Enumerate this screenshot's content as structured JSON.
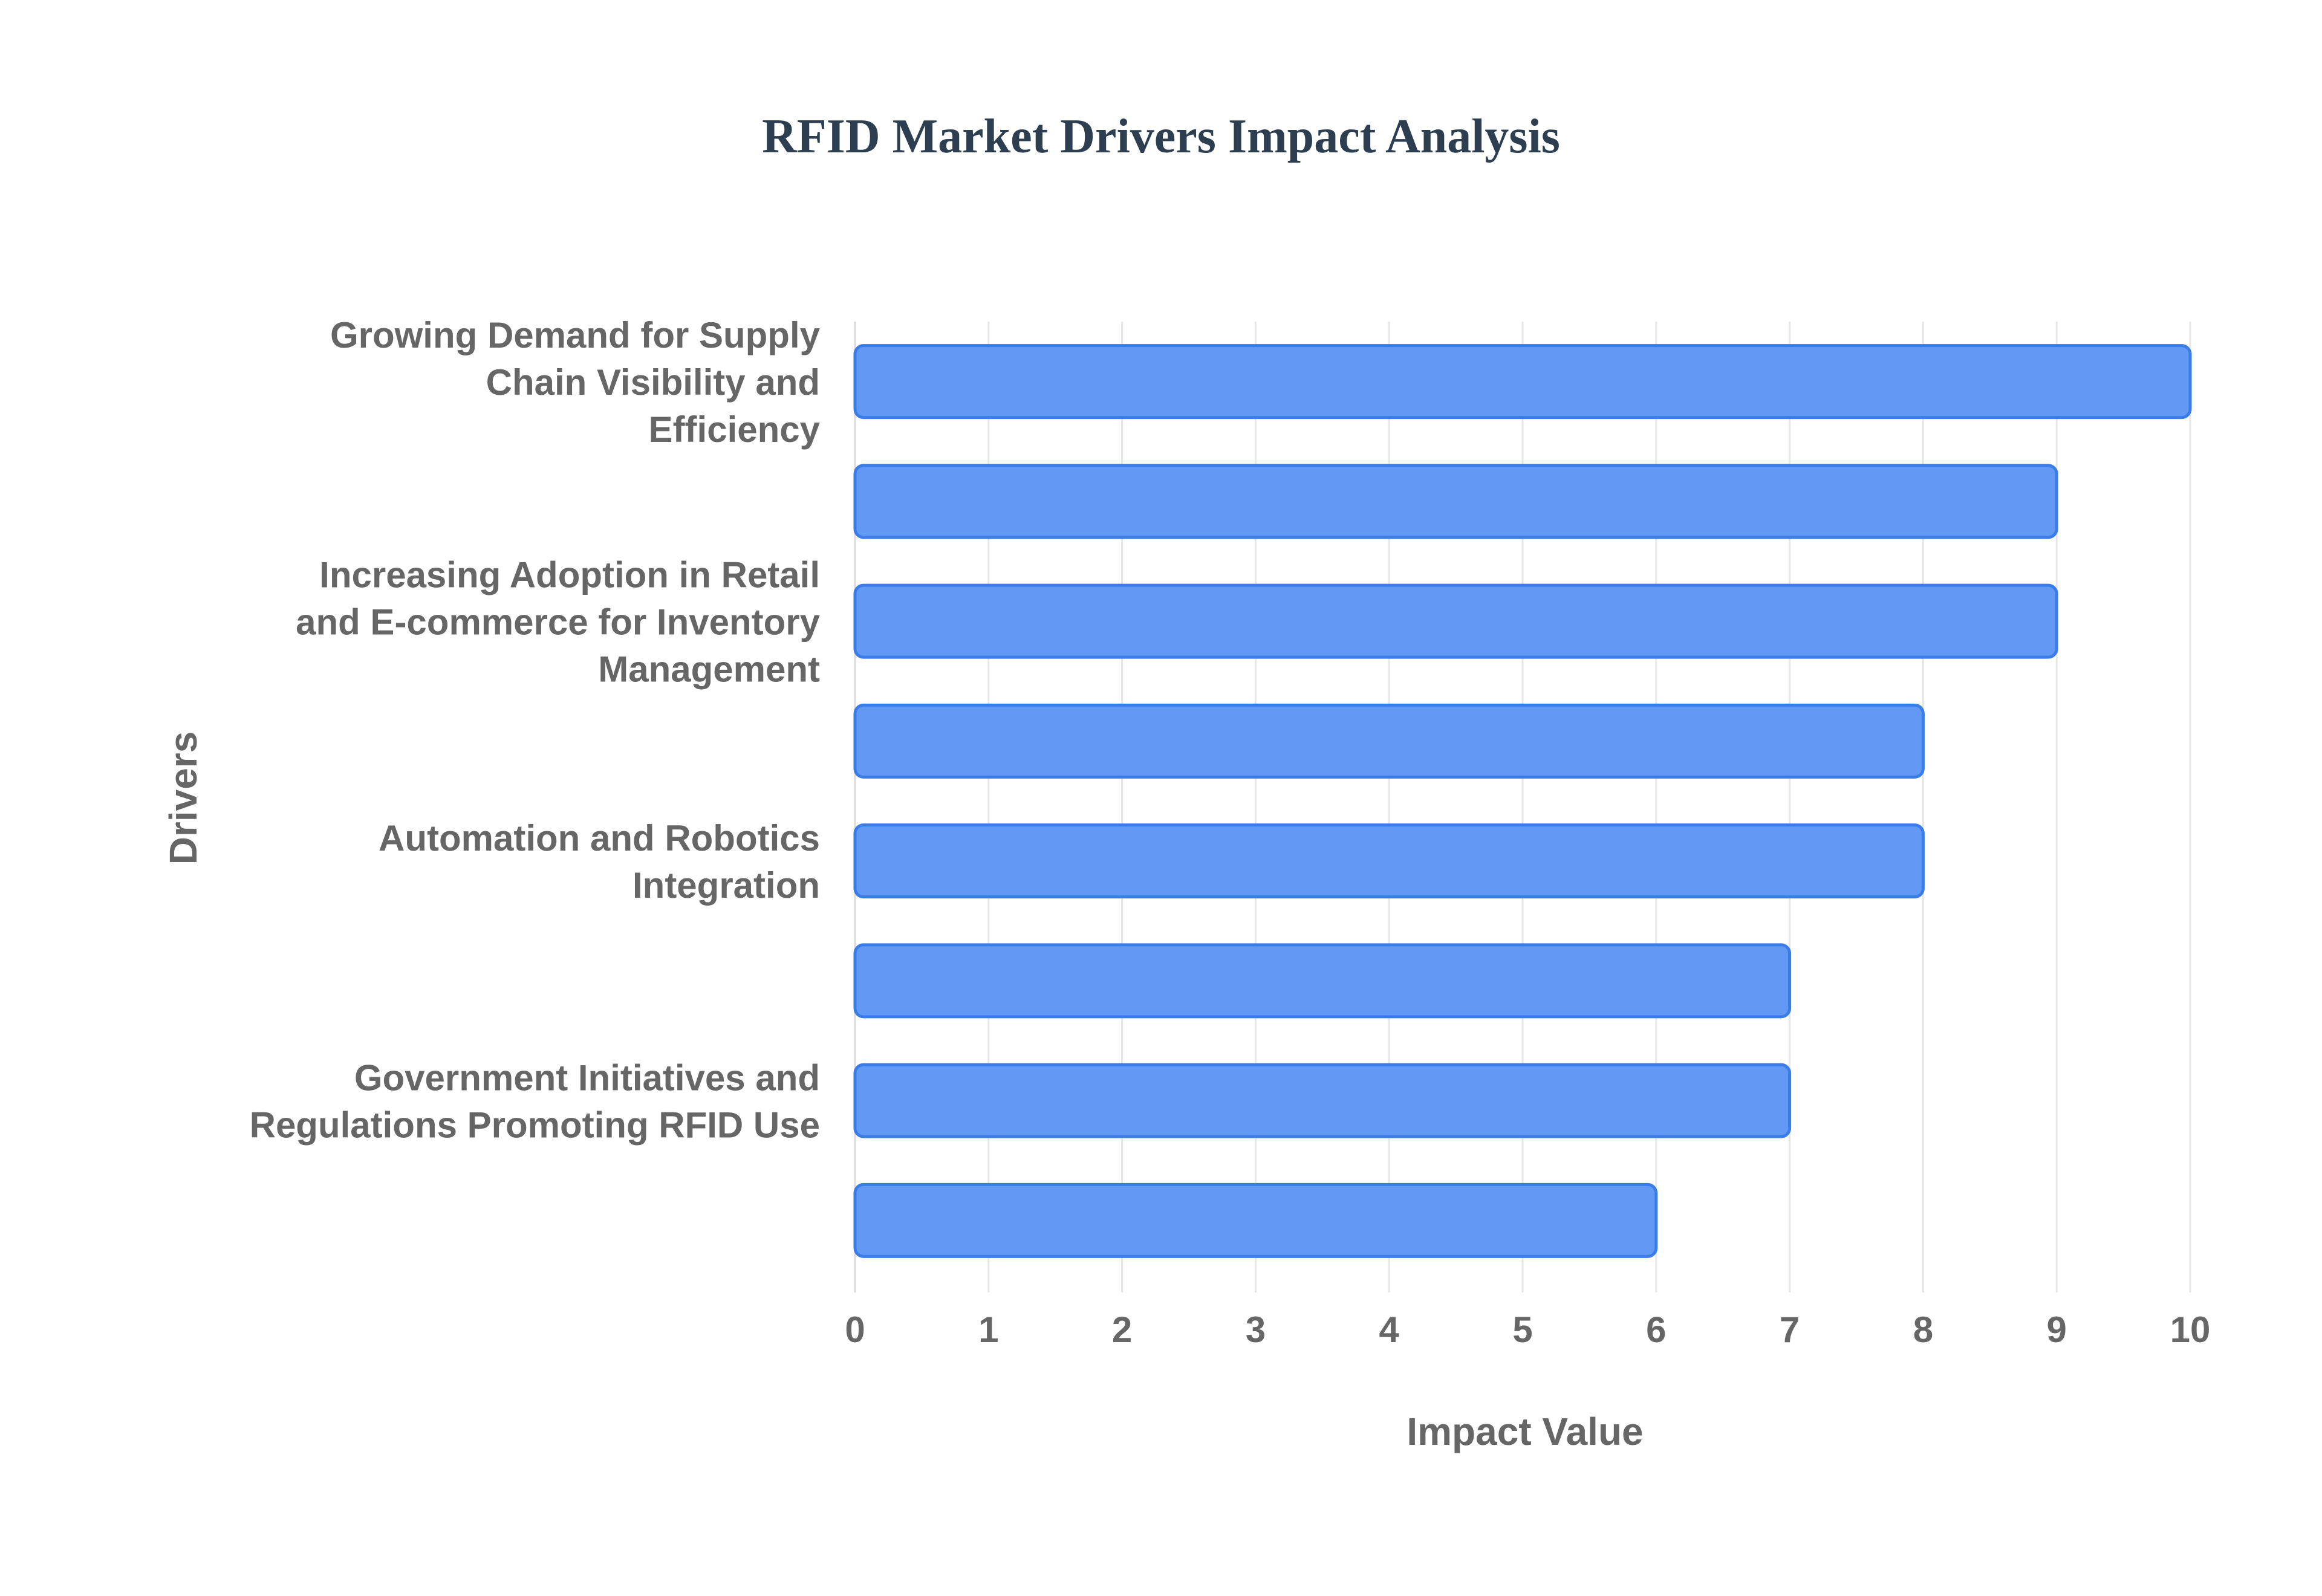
{
  "chart_data": {
    "type": "bar",
    "orientation": "horizontal",
    "title": "RFID Market Drivers Impact Analysis",
    "xlabel": "Impact Value",
    "ylabel": "Drivers",
    "xlim": [
      0,
      10
    ],
    "x_ticks": [
      "0",
      "1",
      "2",
      "3",
      "4",
      "5",
      "6",
      "7",
      "8",
      "9",
      "10"
    ],
    "grid": true,
    "categories": [
      "Growing Demand for Supply Chain Visibility and Efficiency",
      "",
      "Increasing Adoption in Retail and E-commerce for Inventory Management",
      "",
      "Automation and Robotics Integration",
      "",
      "Government Initiatives and Regulations Promoting RFID Use",
      ""
    ],
    "category_label_lines": [
      [
        "Growing Demand for Supply",
        "Chain Visibility and",
        "Efficiency"
      ],
      [],
      [
        "Increasing Adoption in Retail",
        "and E-commerce for Inventory",
        "Management"
      ],
      [],
      [
        "Automation and Robotics",
        "Integration"
      ],
      [],
      [
        "Government Initiatives and",
        "Regulations Promoting RFID Use"
      ],
      []
    ],
    "values": [
      10,
      9,
      9,
      8,
      8,
      7,
      7,
      6
    ],
    "bar_color": "#6199f5",
    "bar_border_color": "#3b7de8"
  }
}
